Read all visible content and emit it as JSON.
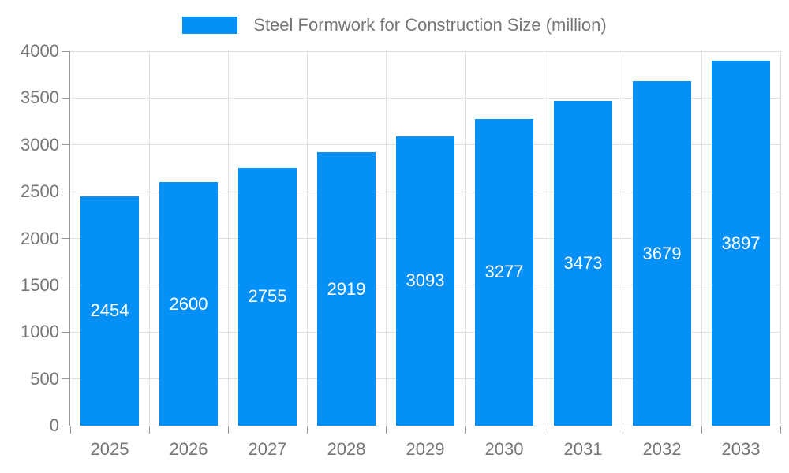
{
  "legend": {
    "label": "Steel Formwork for Construction Size (million)"
  },
  "chart_data": {
    "type": "bar",
    "title": "Steel Formwork for Construction Size (million)",
    "categories": [
      "2025",
      "2026",
      "2027",
      "2028",
      "2029",
      "2030",
      "2031",
      "2032",
      "2033"
    ],
    "values": [
      2454,
      2600,
      2755,
      2919,
      3093,
      3277,
      3473,
      3679,
      3897
    ],
    "series": [
      {
        "name": "Steel Formwork for Construction Size (million)",
        "values": [
          2454,
          2600,
          2755,
          2919,
          3093,
          3277,
          3473,
          3679,
          3897
        ]
      }
    ],
    "xlabel": "",
    "ylabel": "",
    "ylim": [
      0,
      4000
    ],
    "yticks": [
      0,
      500,
      1000,
      1500,
      2000,
      2500,
      3000,
      3500,
      4000
    ],
    "grid": true,
    "legend_position": "top-center",
    "bar_labels_visible": true,
    "colors": {
      "bar": "#0590f7",
      "grid_line": "#e0e0e0",
      "axis_line": "#999999",
      "tick_label": "#757575",
      "bar_label": "#ffffff",
      "background": "#ffffff"
    }
  }
}
